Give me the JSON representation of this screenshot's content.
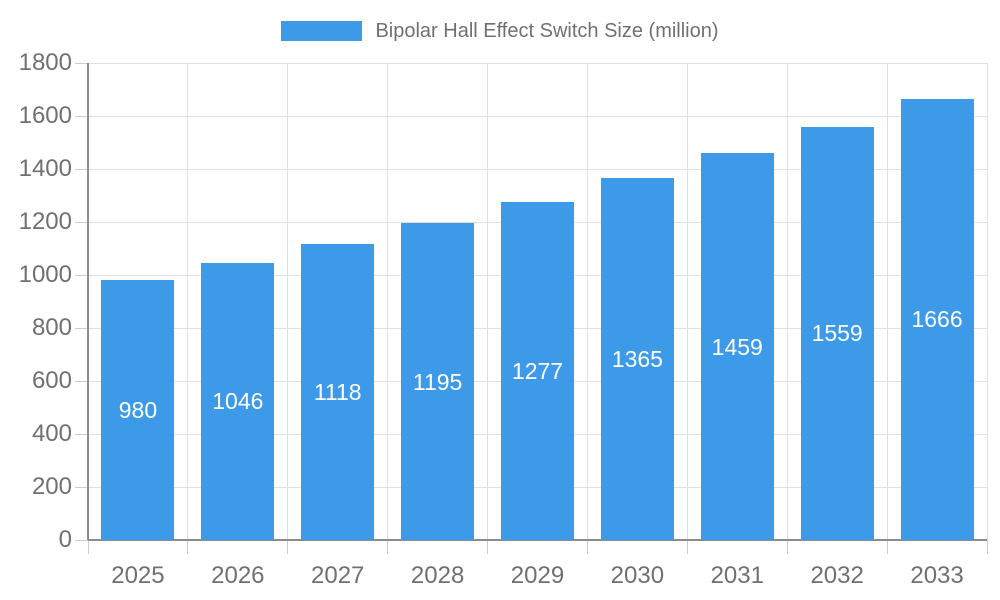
{
  "chart_data": {
    "type": "bar",
    "title": "",
    "legend": "Bipolar Hall Effect Switch Size (million)",
    "legend_position": "top-center",
    "categories": [
      "2025",
      "2026",
      "2027",
      "2028",
      "2029",
      "2030",
      "2031",
      "2032",
      "2033"
    ],
    "values": [
      980,
      1046,
      1118,
      1195,
      1277,
      1365,
      1459,
      1559,
      1666
    ],
    "xlabel": "",
    "ylabel": "",
    "ylim": [
      0,
      1800
    ],
    "ytick_step": 200,
    "yticks": [
      0,
      200,
      400,
      600,
      800,
      1000,
      1200,
      1400,
      1600,
      1800
    ],
    "grid": true,
    "bar_label_position": "inside-center"
  },
  "colors": {
    "bar": "#3d9ae8",
    "grid": "#e0e0e0",
    "axis": "#8c8c8c",
    "tick": "#cccccc",
    "axis_text": "#707070",
    "bar_label_text": "#ffffff",
    "background": "#ffffff"
  }
}
